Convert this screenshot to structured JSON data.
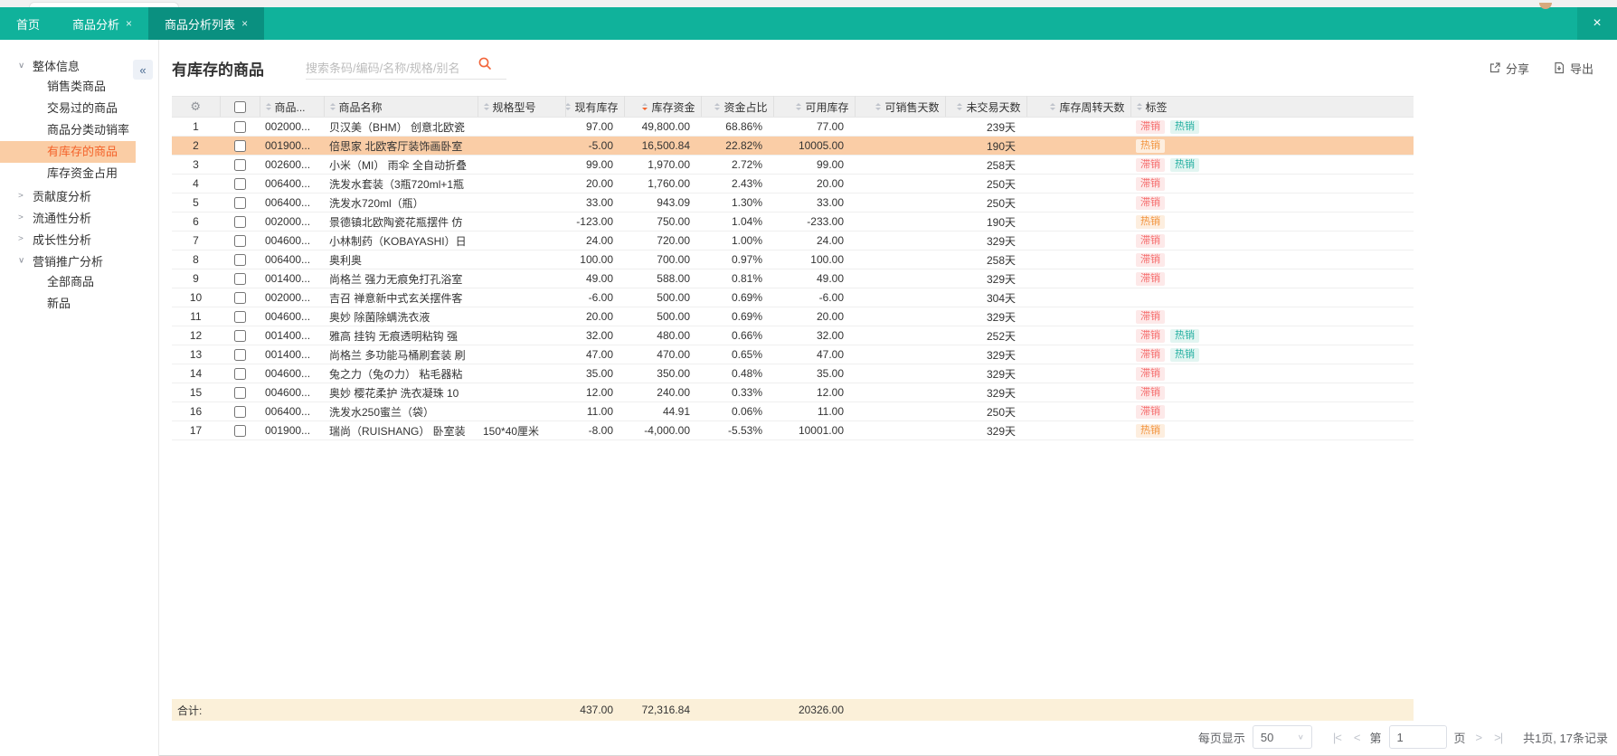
{
  "tab_bar": {
    "tabs": [
      {
        "label": "首页",
        "closable": false,
        "active": false
      },
      {
        "label": "商品分析",
        "closable": true,
        "active": false
      },
      {
        "label": "商品分析列表",
        "closable": true,
        "active": true
      }
    ],
    "close_all": "×"
  },
  "sidebar": {
    "collapse_icon": "«",
    "groups": [
      {
        "label": "整体信息",
        "expanded": true,
        "children": [
          "销售类商品",
          "交易过的商品",
          "商品分类动销率",
          "有库存的商品",
          "库存资金占用"
        ],
        "active_child": "有库存的商品"
      },
      {
        "label": "贡献度分析",
        "expanded": false,
        "children": []
      },
      {
        "label": "流通性分析",
        "expanded": false,
        "children": []
      },
      {
        "label": "成长性分析",
        "expanded": false,
        "children": []
      },
      {
        "label": "营销推广分析",
        "expanded": true,
        "children": [
          "全部商品",
          "新品"
        ],
        "active_child": ""
      }
    ]
  },
  "toolbar": {
    "page_title": "有库存的商品",
    "search_placeholder": "搜索条码/编码/名称/规格/别名",
    "share_label": "分享",
    "export_label": "导出"
  },
  "table": {
    "columns": [
      {
        "key": "gear",
        "label": "",
        "type": "gear"
      },
      {
        "key": "check",
        "label": "",
        "type": "checkbox"
      },
      {
        "key": "code",
        "label": "商品...",
        "align": "left",
        "sortable": true
      },
      {
        "key": "name",
        "label": "商品名称",
        "align": "left",
        "sortable": true
      },
      {
        "key": "spec",
        "label": "规格型号",
        "align": "left",
        "sortable": true
      },
      {
        "key": "qty",
        "label": "现有库存",
        "align": "right",
        "sortable": true
      },
      {
        "key": "fund",
        "label": "库存资金",
        "align": "right",
        "sortable": true,
        "sorted": "desc"
      },
      {
        "key": "ratio",
        "label": "资金占比",
        "align": "right",
        "sortable": true
      },
      {
        "key": "avail",
        "label": "可用库存",
        "align": "right",
        "sortable": true
      },
      {
        "key": "sale_days",
        "label": "可销售天数",
        "align": "right",
        "sortable": true
      },
      {
        "key": "no_trade",
        "label": "未交易天数",
        "align": "right",
        "sortable": true
      },
      {
        "key": "turnover",
        "label": "库存周转天数",
        "align": "right",
        "sortable": true
      },
      {
        "key": "tags",
        "label": "标签",
        "align": "left",
        "sortable": true,
        "type": "tags"
      }
    ],
    "rows": [
      {
        "num": "1",
        "code": "002000...",
        "name": "贝汉美（BHM） 创意北欧瓷",
        "spec": "",
        "qty": "97.00",
        "fund": "49,800.00",
        "ratio": "68.86%",
        "avail": "77.00",
        "sale_days": "",
        "no_trade": "239天",
        "turnover": "",
        "tags": [
          {
            "text": "滞销",
            "type": "red"
          },
          {
            "text": "热销",
            "type": "teal"
          }
        ],
        "highlight": false
      },
      {
        "num": "2",
        "code": "001900...",
        "name": "倍思家 北欧客厅装饰画卧室",
        "spec": "",
        "qty": "-5.00",
        "fund": "16,500.84",
        "ratio": "22.82%",
        "avail": "10005.00",
        "sale_days": "",
        "no_trade": "190天",
        "turnover": "",
        "tags": [
          {
            "text": "热销",
            "type": "orange"
          }
        ],
        "highlight": true
      },
      {
        "num": "3",
        "code": "002600...",
        "name": "小米（MI） 雨伞 全自动折叠",
        "spec": "",
        "qty": "99.00",
        "fund": "1,970.00",
        "ratio": "2.72%",
        "avail": "99.00",
        "sale_days": "",
        "no_trade": "258天",
        "turnover": "",
        "tags": [
          {
            "text": "滞销",
            "type": "red"
          },
          {
            "text": "热销",
            "type": "teal"
          }
        ],
        "highlight": false
      },
      {
        "num": "4",
        "code": "006400...",
        "name": "洗发水套装（3瓶720ml+1瓶",
        "spec": "",
        "qty": "20.00",
        "fund": "1,760.00",
        "ratio": "2.43%",
        "avail": "20.00",
        "sale_days": "",
        "no_trade": "250天",
        "turnover": "",
        "tags": [
          {
            "text": "滞销",
            "type": "red"
          }
        ],
        "highlight": false
      },
      {
        "num": "5",
        "code": "006400...",
        "name": "洗发水720ml（瓶）",
        "spec": "",
        "qty": "33.00",
        "fund": "943.09",
        "ratio": "1.30%",
        "avail": "33.00",
        "sale_days": "",
        "no_trade": "250天",
        "turnover": "",
        "tags": [
          {
            "text": "滞销",
            "type": "red"
          }
        ],
        "highlight": false
      },
      {
        "num": "6",
        "code": "002000...",
        "name": "景德镇北欧陶瓷花瓶摆件 仿",
        "spec": "",
        "qty": "-123.00",
        "fund": "750.00",
        "ratio": "1.04%",
        "avail": "-233.00",
        "sale_days": "",
        "no_trade": "190天",
        "turnover": "",
        "tags": [
          {
            "text": "热销",
            "type": "orange"
          }
        ],
        "highlight": false
      },
      {
        "num": "7",
        "code": "004600...",
        "name": "小林制药（KOBAYASHI）日",
        "spec": "",
        "qty": "24.00",
        "fund": "720.00",
        "ratio": "1.00%",
        "avail": "24.00",
        "sale_days": "",
        "no_trade": "329天",
        "turnover": "",
        "tags": [
          {
            "text": "滞销",
            "type": "red"
          }
        ],
        "highlight": false
      },
      {
        "num": "8",
        "code": "006400...",
        "name": "奥利奥",
        "spec": "",
        "qty": "100.00",
        "fund": "700.00",
        "ratio": "0.97%",
        "avail": "100.00",
        "sale_days": "",
        "no_trade": "258天",
        "turnover": "",
        "tags": [
          {
            "text": "滞销",
            "type": "red"
          }
        ],
        "highlight": false
      },
      {
        "num": "9",
        "code": "001400...",
        "name": "尚格兰 强力无痕免打孔浴室",
        "spec": "",
        "qty": "49.00",
        "fund": "588.00",
        "ratio": "0.81%",
        "avail": "49.00",
        "sale_days": "",
        "no_trade": "329天",
        "turnover": "",
        "tags": [
          {
            "text": "滞销",
            "type": "red"
          }
        ],
        "highlight": false
      },
      {
        "num": "10",
        "code": "002000...",
        "name": "吉召 禅意新中式玄关摆件客",
        "spec": "",
        "qty": "-6.00",
        "fund": "500.00",
        "ratio": "0.69%",
        "avail": "-6.00",
        "sale_days": "",
        "no_trade": "304天",
        "turnover": "",
        "tags": [],
        "highlight": false
      },
      {
        "num": "11",
        "code": "004600...",
        "name": "奥妙 除菌除螨洗衣液",
        "spec": "",
        "qty": "20.00",
        "fund": "500.00",
        "ratio": "0.69%",
        "avail": "20.00",
        "sale_days": "",
        "no_trade": "329天",
        "turnover": "",
        "tags": [
          {
            "text": "滞销",
            "type": "red"
          }
        ],
        "highlight": false
      },
      {
        "num": "12",
        "code": "001400...",
        "name": "雅高 挂钩 无痕透明粘钩 强",
        "spec": "",
        "qty": "32.00",
        "fund": "480.00",
        "ratio": "0.66%",
        "avail": "32.00",
        "sale_days": "",
        "no_trade": "252天",
        "turnover": "",
        "tags": [
          {
            "text": "滞销",
            "type": "red"
          },
          {
            "text": "热销",
            "type": "teal"
          }
        ],
        "highlight": false
      },
      {
        "num": "13",
        "code": "001400...",
        "name": "尚格兰 多功能马桶刷套装 刷",
        "spec": "",
        "qty": "47.00",
        "fund": "470.00",
        "ratio": "0.65%",
        "avail": "47.00",
        "sale_days": "",
        "no_trade": "329天",
        "turnover": "",
        "tags": [
          {
            "text": "滞销",
            "type": "red"
          },
          {
            "text": "热销",
            "type": "teal"
          }
        ],
        "highlight": false
      },
      {
        "num": "14",
        "code": "004600...",
        "name": "兔之力（兔の力） 粘毛器粘",
        "spec": "",
        "qty": "35.00",
        "fund": "350.00",
        "ratio": "0.48%",
        "avail": "35.00",
        "sale_days": "",
        "no_trade": "329天",
        "turnover": "",
        "tags": [
          {
            "text": "滞销",
            "type": "red"
          }
        ],
        "highlight": false
      },
      {
        "num": "15",
        "code": "004600...",
        "name": "奥妙 樱花柔护 洗衣凝珠 10",
        "spec": "",
        "qty": "12.00",
        "fund": "240.00",
        "ratio": "0.33%",
        "avail": "12.00",
        "sale_days": "",
        "no_trade": "329天",
        "turnover": "",
        "tags": [
          {
            "text": "滞销",
            "type": "red"
          }
        ],
        "highlight": false
      },
      {
        "num": "16",
        "code": "006400...",
        "name": "洗发水250蜜兰（袋）",
        "spec": "",
        "qty": "11.00",
        "fund": "44.91",
        "ratio": "0.06%",
        "avail": "11.00",
        "sale_days": "",
        "no_trade": "250天",
        "turnover": "",
        "tags": [
          {
            "text": "滞销",
            "type": "red"
          }
        ],
        "highlight": false
      },
      {
        "num": "17",
        "code": "001900...",
        "name": "瑞尚（RUISHANG） 卧室装",
        "spec": "150*40厘米",
        "qty": "-8.00",
        "fund": "-4,000.00",
        "ratio": "-5.53%",
        "avail": "10001.00",
        "sale_days": "",
        "no_trade": "329天",
        "turnover": "",
        "tags": [
          {
            "text": "热销",
            "type": "orange"
          }
        ],
        "highlight": false
      }
    ],
    "summary": {
      "label": "合计:",
      "qty": "437.00",
      "fund": "72,316.84",
      "avail": "20326.00"
    }
  },
  "pagination": {
    "per_page_label": "每页显示",
    "per_page_value": "50",
    "first_icon": "|<",
    "prev_icon": "<",
    "page_prefix": "第",
    "page_value": "1",
    "page_suffix": "页",
    "next_icon": ">",
    "last_icon": ">|",
    "total_text": "共1页, 17条记录"
  },
  "colors": {
    "topbar_teal": "#10B29B",
    "topbar_active": "#0A9080",
    "highlight_peach": "#FACDA6",
    "active_nav_text": "#F4632A",
    "summary_bg": "#FBF0D9",
    "tag_red": "#F56C6C",
    "tag_teal": "#26B0A1",
    "tag_orange": "#F2933D",
    "search_icon_orange": "#F2653A"
  }
}
